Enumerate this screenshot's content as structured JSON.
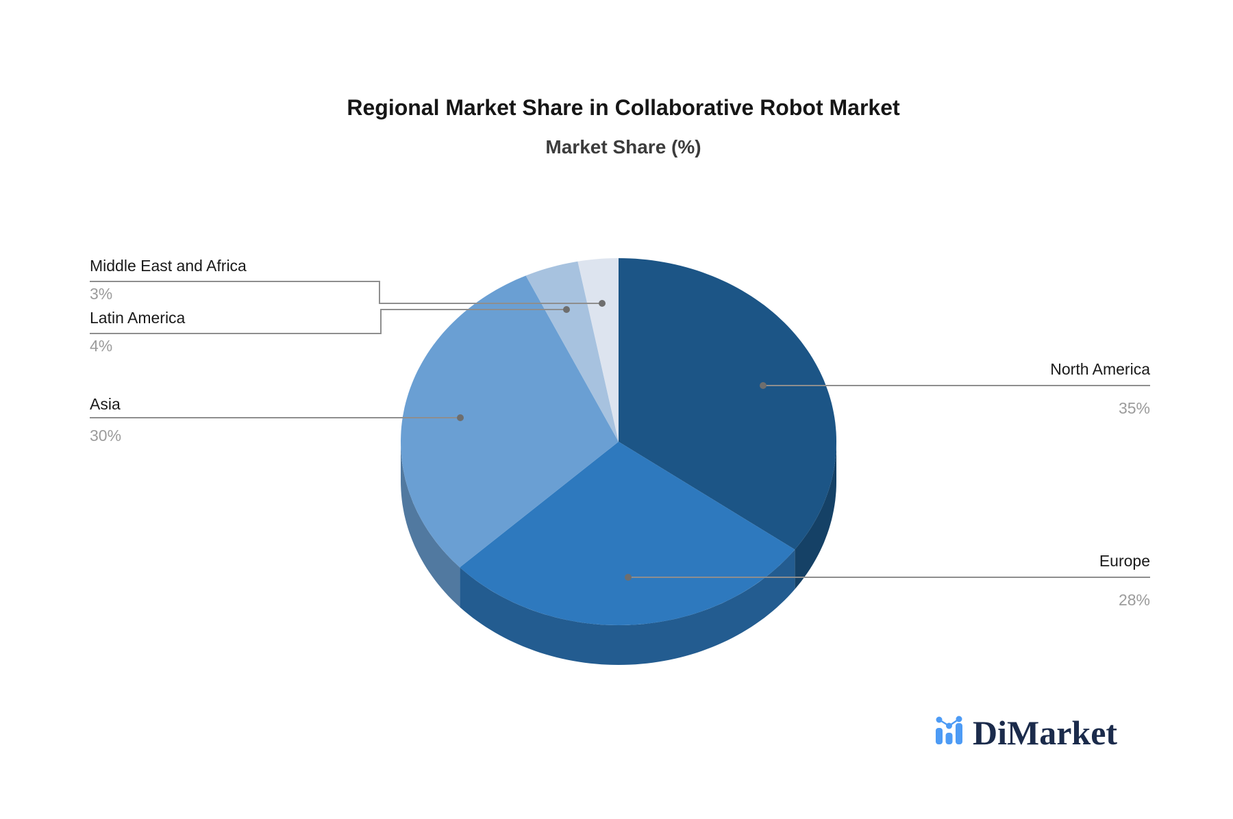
{
  "chart_data": {
    "type": "pie",
    "style": "3d",
    "title": "Regional Market Share in Collaborative Robot Market",
    "subtitle": "Market Share (%)",
    "unit": "%",
    "start_angle_deg": 0,
    "direction": "clockwise",
    "categories": [
      "North America",
      "Europe",
      "Asia",
      "Latin America",
      "Middle East and Africa"
    ],
    "values": [
      35,
      28,
      30,
      4,
      3
    ],
    "labels": [
      "35%",
      "28%",
      "30%",
      "4%",
      "3%"
    ],
    "colors": [
      "#1C5586",
      "#2E79BE",
      "#6A9FD3",
      "#A7C2DF",
      "#DDE4EF"
    ],
    "legend_position": "callout-labels"
  },
  "branding": {
    "logo_text": "DiMarket",
    "logo_icon": "bar-chart-trend-icon",
    "logo_icon_color": "#4D9BF5",
    "logo_text_color": "#1B2B4B"
  },
  "styles": {
    "background": "#FFFFFF",
    "title_color": "#161616",
    "subtitle_color": "#3C3C3C",
    "label_color": "#1A1A1A",
    "value_color": "#9B9B9B",
    "connector_color": "#8E8E8E",
    "connector_dot_color": "#6E6E6E",
    "wall_shade_factor": 0.76
  }
}
